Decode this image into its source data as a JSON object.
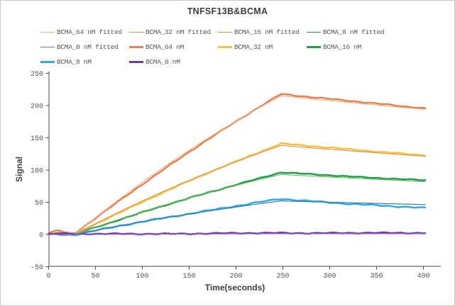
{
  "chart_data": {
    "type": "line",
    "title": "TNFSF13B&BCMA",
    "xlabel": "Time(seconds)",
    "ylabel": "Signal",
    "xlim": [
      0,
      420
    ],
    "ylim": [
      -50,
      250
    ],
    "xticks": [
      0,
      50,
      100,
      150,
      200,
      250,
      300,
      350,
      400
    ],
    "yticks": [
      -50,
      0,
      50,
      100,
      150,
      200,
      250
    ],
    "grid": false,
    "legend_position": "top",
    "model": {
      "baseline_end_s": 28,
      "association_peak_s": 248,
      "trace_end_s": 402,
      "k_raw": 0.0012,
      "k_fit": 0.002
    },
    "series": [
      {
        "name": "BCMA_64 nM",
        "conc_nM": 64,
        "type": "raw",
        "color": "#E58350",
        "width": 2.5,
        "baseline": 1.5,
        "bump": 4.5,
        "noise": 1.0,
        "peak": 218,
        "value_at_400s": 196
      },
      {
        "name": "BCMA_32 nM",
        "conc_nM": 32,
        "type": "raw",
        "color": "#F4C43A",
        "width": 2.5,
        "baseline": 0.8,
        "bump": 2.0,
        "noise": 1.0,
        "peak": 141,
        "value_at_400s": 123
      },
      {
        "name": "BCMA_16 nM",
        "conc_nM": 16,
        "type": "raw",
        "color": "#1CA24C",
        "width": 2.5,
        "baseline": 0.5,
        "bump": 1.0,
        "noise": 0.9,
        "peak": 96,
        "value_at_400s": 84
      },
      {
        "name": "BCMA_8 nM",
        "conc_nM": 8,
        "type": "raw",
        "color": "#30ACE3",
        "width": 2.5,
        "baseline": -0.3,
        "bump": 0.5,
        "noise": 1.3,
        "peak": 55,
        "value_at_400s": 41
      },
      {
        "name": "BCMA_0 nM",
        "conc_nM": 0,
        "type": "raw",
        "color": "#7038A8",
        "width": 2.5,
        "baseline": 1.0,
        "bump": 0.5,
        "noise": 1.1,
        "peak": 2.2,
        "value_at_400s": 2.2
      },
      {
        "name": "BCMA_64 nM fitted",
        "conc_nM": 64,
        "type": "fitted",
        "color": "#F2B183",
        "width": 1.1,
        "baseline": 0,
        "bump": 0,
        "noise": 0,
        "peak": 215,
        "value_at_400s": 194
      },
      {
        "name": "BCMA_32 nM fitted",
        "conc_nM": 32,
        "type": "fitted",
        "color": "#E98C53",
        "width": 1.1,
        "baseline": 0,
        "bump": 0,
        "noise": 0,
        "peak": 138,
        "value_at_400s": 121.5
      },
      {
        "name": "BCMA_16 nM fitted",
        "conc_nM": 16,
        "type": "fitted",
        "color": "#7CB956",
        "width": 1.1,
        "baseline": 0,
        "bump": 0,
        "noise": 0,
        "peak": 93,
        "value_at_400s": 82
      },
      {
        "name": "BCMA_8 nM fitted",
        "conc_nM": 8,
        "type": "fitted",
        "color": "#2C74B3",
        "width": 1.1,
        "baseline": 0,
        "bump": 0,
        "noise": 0,
        "peak": 52,
        "value_at_400s": 46.5
      },
      {
        "name": "BCMA_0 nM fitted",
        "conc_nM": 0,
        "type": "fitted",
        "color": "#9A63C0",
        "width": 1.1,
        "baseline": 0,
        "bump": 0,
        "noise": 0,
        "peak": 1.2,
        "value_at_400s": 1.2
      }
    ]
  },
  "legend": {
    "items": [
      {
        "label": "BCMA_64 nM fitted",
        "color": "#F2B183",
        "thick": false
      },
      {
        "label": "BCMA_32 nM fitted",
        "color": "#E98C53",
        "thick": false
      },
      {
        "label": "BCMA_16 nM fitted",
        "color": "#7CB956",
        "thick": false
      },
      {
        "label": "BCMA_8 nM fitted",
        "color": "#2C74B3",
        "thick": false
      },
      {
        "label": "BCMA_0 nM fitted",
        "color": "#9A63C0",
        "thick": false
      },
      {
        "label": "BCMA_64 nM",
        "color": "#E58350",
        "thick": true
      },
      {
        "label": "BCMA_32 nM",
        "color": "#F4C43A",
        "thick": true
      },
      {
        "label": "BCMA_16 nM",
        "color": "#1CA24C",
        "thick": true
      },
      {
        "label": "BCMA_8 nM",
        "color": "#30ACE3",
        "thick": true
      },
      {
        "label": "BCMA_0 nM",
        "color": "#7038A8",
        "thick": true
      }
    ]
  }
}
